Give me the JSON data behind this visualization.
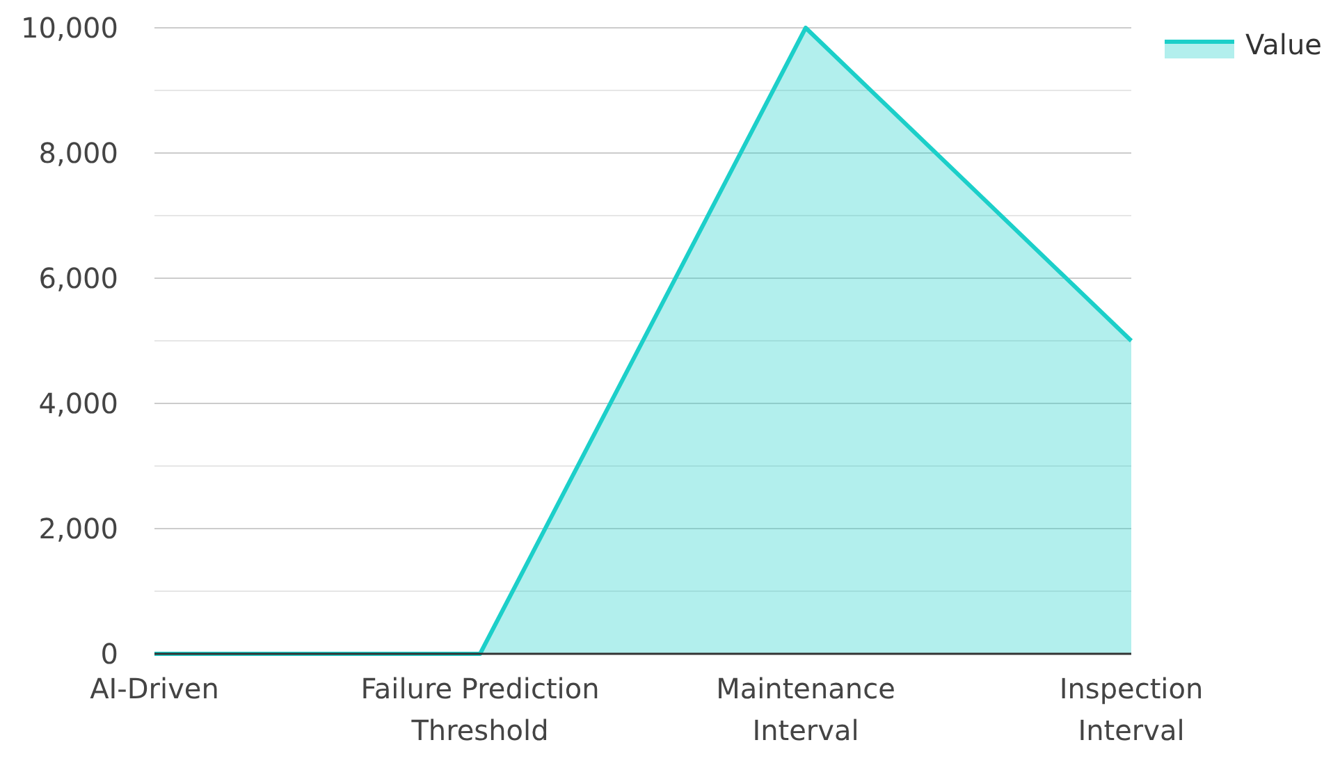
{
  "chart_data": {
    "type": "area",
    "categories": [
      "AI-Driven",
      "Failure Prediction Threshold",
      "Maintenance Interval",
      "Inspection Interval"
    ],
    "series": [
      {
        "name": "Value",
        "color": "#1ccfc9",
        "values": [
          0,
          0,
          10000,
          5000
        ]
      }
    ],
    "ylim": [
      0,
      10000
    ],
    "yticks": [
      0,
      {
        "value": 1000,
        "label": null
      },
      {
        "value": 2000,
        "label": "2,000"
      },
      {
        "value": 3000,
        "label": null
      },
      {
        "value": 4000,
        "label": "4,000"
      },
      {
        "value": 5000,
        "label": null
      },
      {
        "value": 6000,
        "label": "6,000"
      },
      {
        "value": 7000,
        "label": null
      },
      {
        "value": 8000,
        "label": "8,000"
      },
      {
        "value": 9000,
        "label": null
      },
      {
        "value": 10000,
        "label": "10,000"
      }
    ],
    "grid": "y",
    "legend": "top right"
  }
}
